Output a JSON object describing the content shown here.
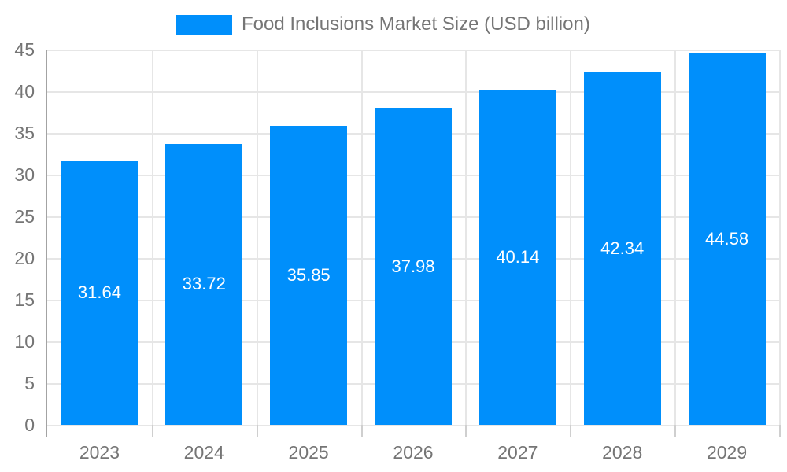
{
  "chart_data": {
    "type": "bar",
    "title": "Food Inclusions Market Size (USD billion)",
    "categories": [
      "2023",
      "2024",
      "2025",
      "2026",
      "2027",
      "2028",
      "2029"
    ],
    "values": [
      31.64,
      33.72,
      35.85,
      37.98,
      40.14,
      42.34,
      44.58
    ],
    "data_labels": [
      "31.64",
      "33.72",
      "35.85",
      "37.98",
      "40.14",
      "42.34",
      "44.58"
    ],
    "yticks": [
      0,
      5,
      10,
      15,
      20,
      25,
      30,
      35,
      40,
      45
    ],
    "ylim": [
      0,
      45
    ],
    "xlabel": "",
    "ylabel": "",
    "grid": true,
    "legend_position": "top",
    "colors": {
      "bar": "#008FFB",
      "data_label": "#ffffff",
      "axis_label": "#757575",
      "grid_line": "#e6e6e6",
      "axis_line": "#a3a3a3",
      "tick": "#cfcfcf",
      "background": "#ffffff"
    }
  }
}
